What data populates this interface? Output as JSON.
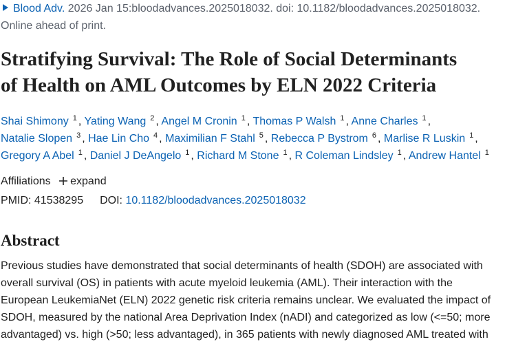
{
  "citation": {
    "journal": "Blood Adv.",
    "details": "2026 Jan 15:bloodadvances.2025018032. doi: 10.1182/bloodadvances.2025018032.",
    "status": "Online ahead of print."
  },
  "title_lines": [
    "Stratifying Survival: The Role of Social Determinants",
    "of Health on AML Outcomes by ELN 2022 Criteria"
  ],
  "authors": [
    {
      "name": "Shai Shimony",
      "aff": "1"
    },
    {
      "name": "Yating Wang",
      "aff": "2"
    },
    {
      "name": "Angel M Cronin",
      "aff": "1"
    },
    {
      "name": "Thomas P Walsh",
      "aff": "1"
    },
    {
      "name": "Anne Charles",
      "aff": "1"
    },
    {
      "name": "Natalie Slopen",
      "aff": "3"
    },
    {
      "name": "Hae Lin Cho",
      "aff": "4"
    },
    {
      "name": "Maximilian F Stahl",
      "aff": "5"
    },
    {
      "name": "Rebecca P Bystrom",
      "aff": "6"
    },
    {
      "name": "Marlise R Luskin",
      "aff": "1"
    },
    {
      "name": "Gregory A Abel",
      "aff": "1"
    },
    {
      "name": "Daniel J DeAngelo",
      "aff": "1"
    },
    {
      "name": "Richard M Stone",
      "aff": "1"
    },
    {
      "name": "R Coleman Lindsley",
      "aff": "1"
    },
    {
      "name": "Andrew Hantel",
      "aff": "1"
    }
  ],
  "affiliations": {
    "label": "Affiliations",
    "button": "expand"
  },
  "ids": {
    "pmid_label": "PMID:",
    "pmid": "41538295",
    "doi_label": "DOI:",
    "doi": "10.1182/bloodadvances.2025018032"
  },
  "abstract": {
    "heading": "Abstract",
    "lines": [
      "Previous studies have demonstrated that social determinants of health (SDOH) are associated with",
      "overall survival (OS) in patients with acute myeloid leukemia (AML). Their interaction with the",
      "European LeukemiaNet (ELN) 2022 genetic risk criteria remains unclear. We evaluated the impact of",
      "SDOH, measured by the national Area Deprivation Index (nADI) and categorized as low (<=50; more",
      "advantaged) vs. high (>50; less advantaged), in 365 patients with newly diagnosed AML treated with"
    ]
  }
}
